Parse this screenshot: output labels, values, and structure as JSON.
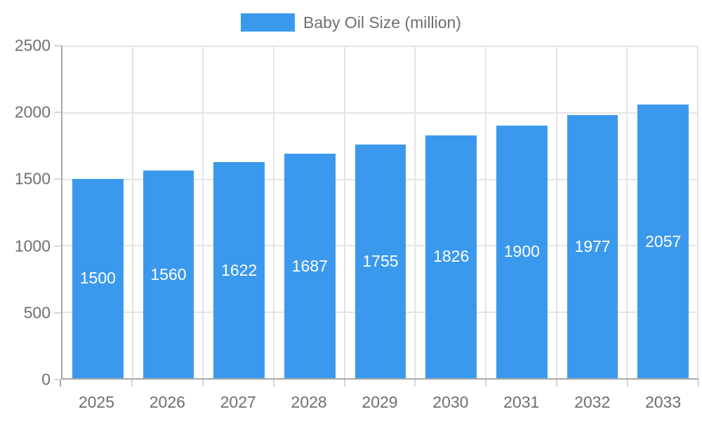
{
  "chart_data": {
    "type": "bar",
    "title": "",
    "categories": [
      "2025",
      "2026",
      "2027",
      "2028",
      "2029",
      "2030",
      "2031",
      "2032",
      "2033"
    ],
    "series": [
      {
        "name": "Baby Oil Size (million)",
        "color": "#3b99ed",
        "values": [
          1500,
          1560,
          1622,
          1687,
          1755,
          1826,
          1900,
          1977,
          2057
        ]
      }
    ],
    "xlabel": "",
    "ylabel": "",
    "ylim": [
      0,
      2500
    ],
    "y_ticks": [
      0,
      500,
      1000,
      1500,
      2000,
      2500
    ],
    "grid": true,
    "legend_position": "top-center",
    "value_labels": "centered-inside-bars",
    "colors": {
      "bar": "#3b99ed",
      "axis_text": "#6e6e6e",
      "value_label": "#ffffff",
      "gridline": "#e4e4e4",
      "axis_line": "#a8a8a8",
      "tick": "#d6d6d6",
      "background": "#ffffff"
    }
  }
}
